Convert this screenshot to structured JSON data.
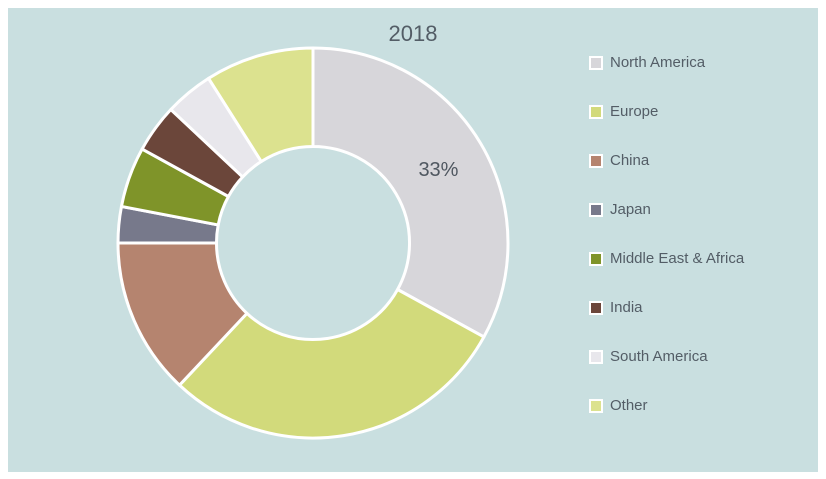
{
  "page": {
    "panel_background": "#c9dfe0",
    "text_color": "#535d66",
    "data_label_color": "#4f5760",
    "separator_color": "#ffffff"
  },
  "chart_data": {
    "type": "pie",
    "variant": "donut",
    "title": "2018",
    "categories": [
      "North America",
      "Europe",
      "China",
      "Japan",
      "Middle East & Africa",
      "India",
      "South America",
      "Other"
    ],
    "values": [
      33,
      29,
      13,
      3,
      5,
      4,
      4,
      9
    ],
    "unit": "%",
    "colors": [
      "#d7d6da",
      "#d2da7b",
      "#b5846f",
      "#77798b",
      "#7f9429",
      "#6b463a",
      "#e8e7ec",
      "#dce28f"
    ],
    "start_angle_deg": 0,
    "direction": "clockwise",
    "inner_radius_ratio": 0.495,
    "legend_position": "right",
    "data_labels": [
      {
        "category": "North America",
        "text": "33%"
      }
    ]
  }
}
